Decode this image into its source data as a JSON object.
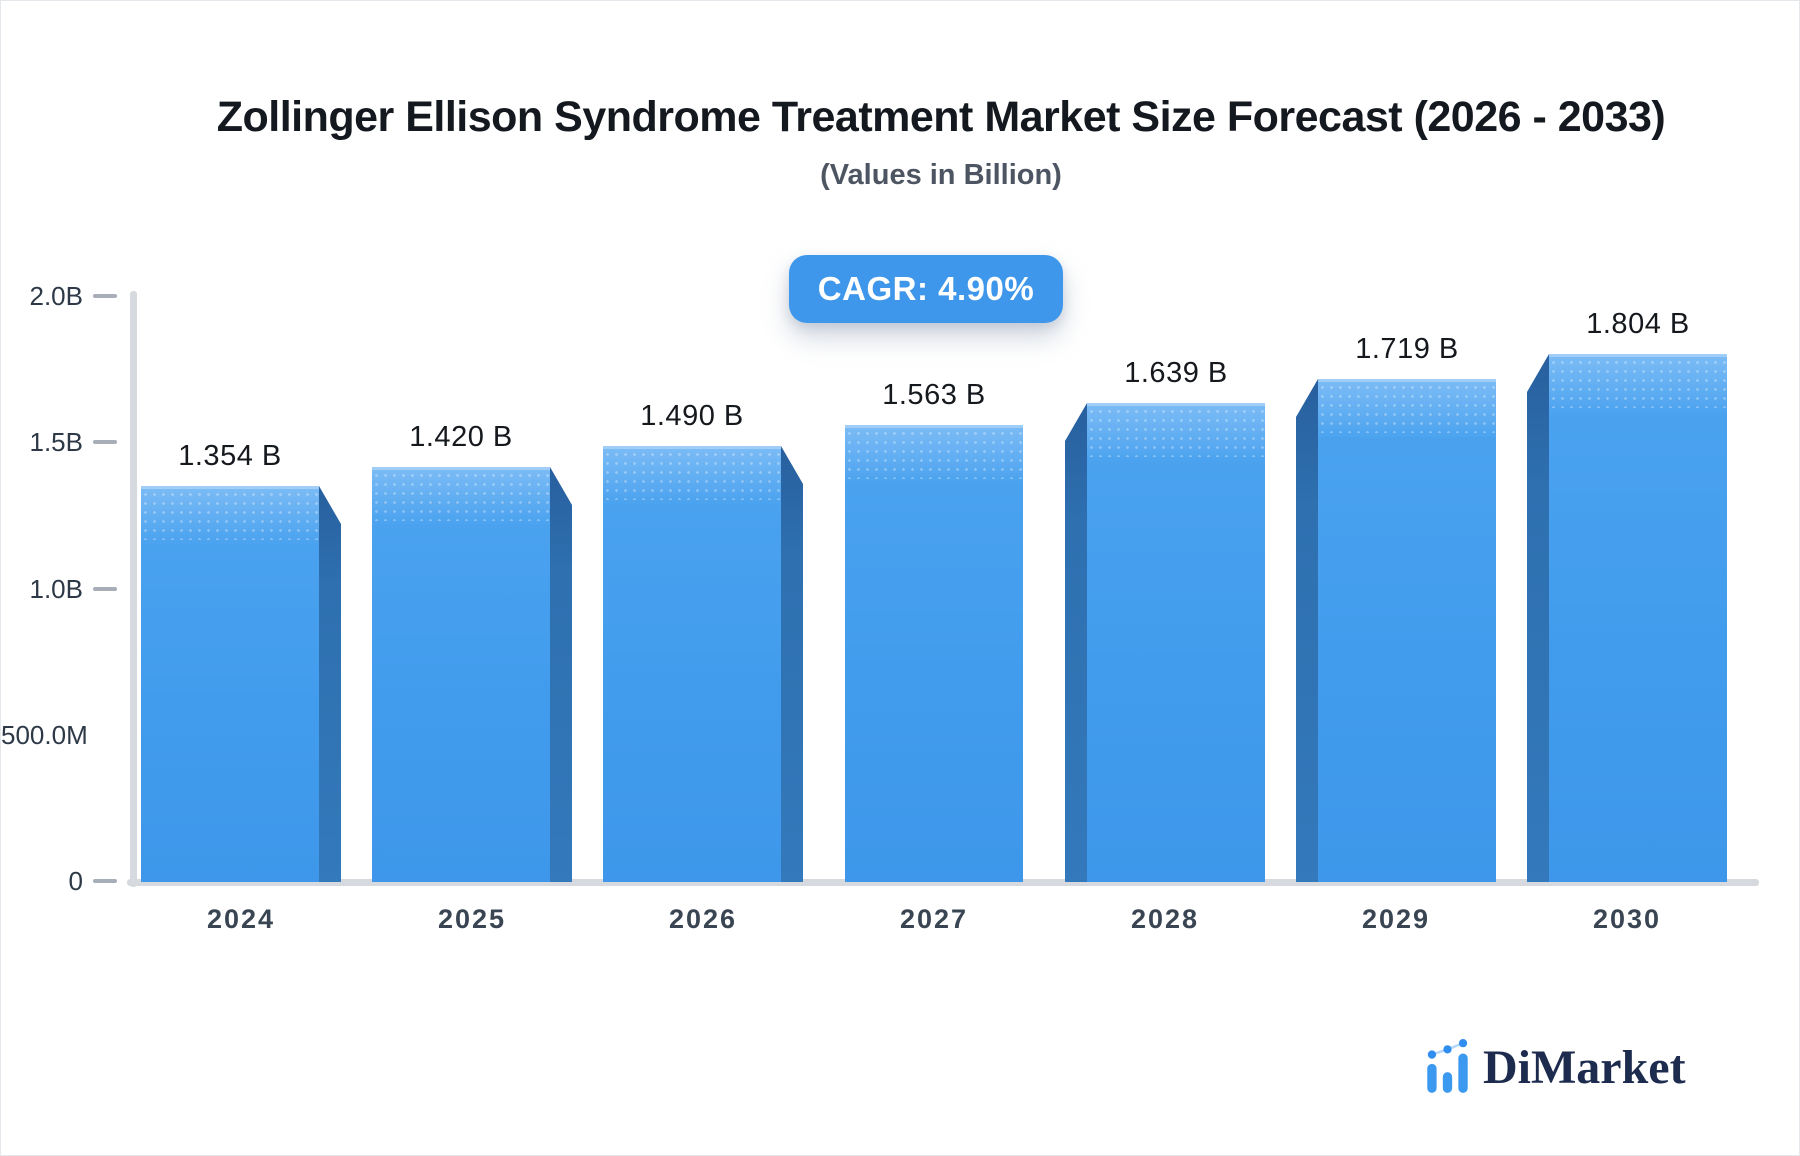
{
  "header": {
    "title": "Zollinger Ellison Syndrome Treatment Market Size Forecast (2026 - 2033)",
    "subtitle": "(Values in Billion)"
  },
  "badge": {
    "label": "CAGR: 4.90%"
  },
  "chart_data": {
    "type": "bar",
    "title": "Zollinger Ellison Syndrome Treatment Market Size Forecast (2026 - 2033)",
    "subtitle": "(Values in Billion)",
    "cagr": "4.90%",
    "categories": [
      "2024",
      "2025",
      "2026",
      "2027",
      "2028",
      "2029",
      "2030"
    ],
    "values": [
      1.354,
      1.42,
      1.49,
      1.563,
      1.639,
      1.719,
      1.804
    ],
    "value_labels": [
      "1.354 B",
      "1.420 B",
      "1.490 B",
      "1.563 B",
      "1.639 B",
      "1.719 B",
      "1.804 B"
    ],
    "ylim": [
      0,
      2.0
    ],
    "y_ticks": [
      {
        "label": "2.0B",
        "value": 2.0,
        "dash": true
      },
      {
        "label": "1.5B",
        "value": 1.5,
        "dash": true
      },
      {
        "label": "1.0B",
        "value": 1.0,
        "dash": true
      },
      {
        "label": "500.0M",
        "value": 0.5,
        "dash": false
      },
      {
        "label": "0",
        "value": 0,
        "dash": true
      }
    ],
    "grid": false,
    "legend_position": "none"
  },
  "logo": {
    "text": "DiMarket"
  },
  "colors": {
    "bar_front": "#459fee",
    "bar_front_light": "#5cabf3",
    "bar_side": "#2e72b2",
    "badge_bg": "#3e97ea",
    "badge_text": "#ffffff",
    "axis_line": "#d6dade",
    "tick_dash": "#a7aeb8",
    "title_text": "#14181f",
    "subtitle_text": "#4d5562",
    "value_label_text": "#15191e",
    "axis_label_text": "#3a4553",
    "logo_text": "#1d2c4e",
    "logo_icon": "#3b99f0"
  }
}
